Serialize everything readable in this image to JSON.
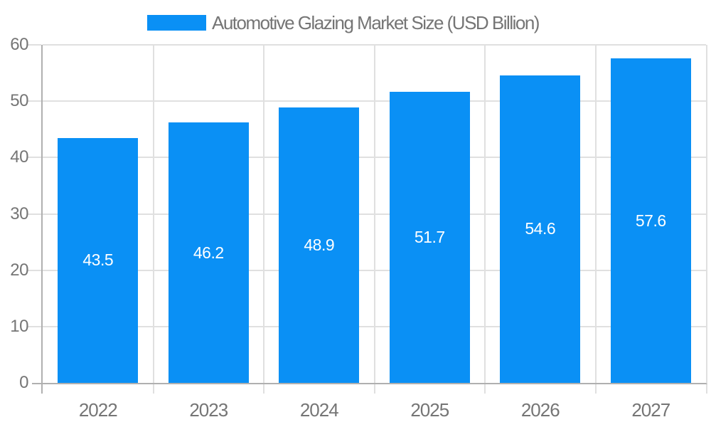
{
  "chart_data": {
    "type": "bar",
    "title": "Automotive Glazing Market Size (USD Billion)",
    "categories": [
      "2022",
      "2023",
      "2024",
      "2025",
      "2026",
      "2027"
    ],
    "values": [
      43.5,
      46.2,
      48.9,
      51.7,
      54.6,
      57.6
    ],
    "value_labels": [
      "43.5",
      "46.2",
      "48.9",
      "51.7",
      "54.6",
      "57.6"
    ],
    "ylim": [
      0,
      60
    ],
    "yticks": [
      0,
      10,
      20,
      30,
      40,
      50,
      60
    ],
    "ytick_labels": [
      "0",
      "10",
      "20",
      "30",
      "40",
      "50",
      "60"
    ],
    "grid": true,
    "legend_position": "top",
    "value_label_position": "center-inside",
    "colors": {
      "bar": "#0a90f5",
      "axis_text": "#757575",
      "axis_line": "#b0b0b0",
      "grid_line": "#e0e0e0",
      "value_label": "#ffffff",
      "background": "#ffffff"
    }
  }
}
